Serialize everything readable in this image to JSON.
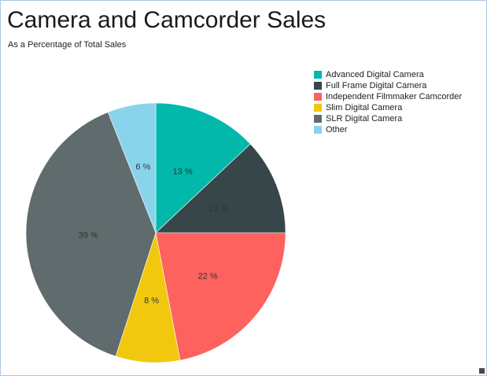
{
  "header": {
    "title": "Camera and Camcorder Sales",
    "subtitle": "As a Percentage of Total Sales"
  },
  "chart_data": {
    "type": "pie",
    "title": "Camera and Camcorder Sales",
    "subtitle": "As a Percentage of Total Sales",
    "legend_position": "top-right",
    "start_angle_deg": 0,
    "direction": "clockwise",
    "value_unit": "% of total sales",
    "slices": [
      {
        "label": "Advanced Digital Camera",
        "value": 13,
        "display": "13 %",
        "color": "#01b8aa"
      },
      {
        "label": "Full Frame Digital Camera",
        "value": 12,
        "display": "12 %",
        "color": "#374649"
      },
      {
        "label": "Independent Filmmaker Camcorder",
        "value": 22,
        "display": "22 %",
        "color": "#fd625e"
      },
      {
        "label": "Slim Digital Camera",
        "value": 8,
        "display": "8 %",
        "color": "#f2c80f"
      },
      {
        "label": "SLR Digital Camera",
        "value": 39,
        "display": "39 %",
        "color": "#5f6b6d"
      },
      {
        "label": "Other",
        "value": 6,
        "display": "6 %",
        "color": "#8ad4eb"
      }
    ]
  }
}
